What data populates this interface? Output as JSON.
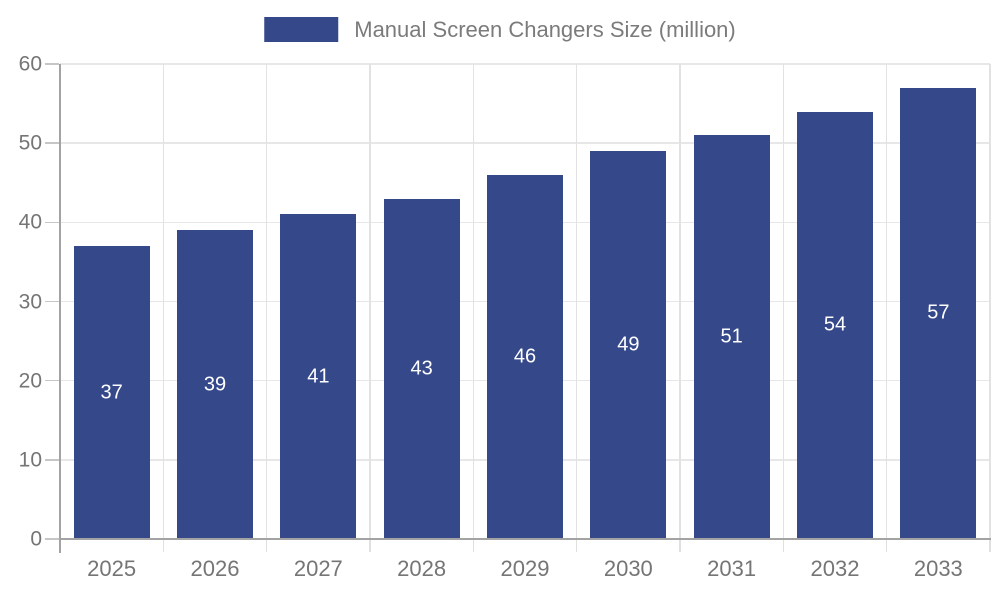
{
  "chart_data": {
    "type": "bar",
    "series_name": "Manual Screen Changers Size (million)",
    "categories": [
      "2025",
      "2026",
      "2027",
      "2028",
      "2029",
      "2030",
      "2031",
      "2032",
      "2033"
    ],
    "values": [
      37,
      39,
      41,
      43,
      46,
      49,
      51,
      54,
      57
    ],
    "title": "",
    "xlabel": "",
    "ylabel": "",
    "ylim": [
      0,
      60
    ],
    "yticks": [
      0,
      10,
      20,
      30,
      40,
      50,
      60
    ],
    "grid": true,
    "legend_position": "top-center",
    "value_label_position": "inside-center",
    "colors": {
      "bar": "#35498a",
      "value_label": "#ffffff",
      "axis_line": "#a3a3a3",
      "grid_line": "#e7e7e7",
      "boundary_line": "#e2e2e2",
      "y_tick_line": "#c6c6c6",
      "x_tick_line": "#e0e0e0",
      "tick_label": "#757575",
      "legend_text": "#7b7b7b",
      "background": "#ffffff"
    }
  }
}
